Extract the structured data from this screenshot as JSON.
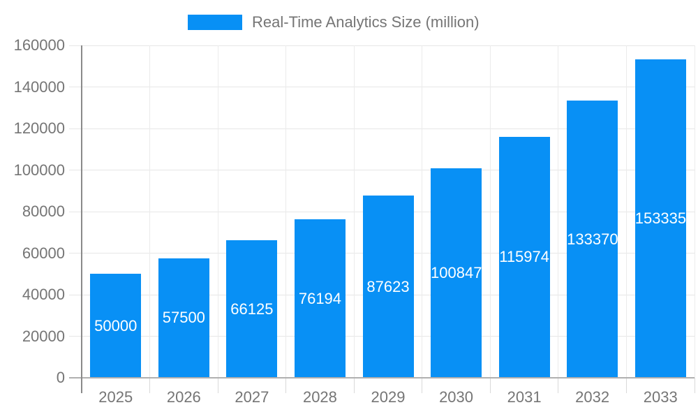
{
  "chart_data": {
    "type": "bar",
    "title": "Real-Time Analytics Size (million)",
    "categories": [
      "2025",
      "2026",
      "2027",
      "2028",
      "2029",
      "2030",
      "2031",
      "2032",
      "2033"
    ],
    "values": [
      50000,
      57500,
      66125,
      76194,
      87623,
      100847,
      115974,
      133370,
      153335
    ],
    "bar_value_labels": [
      "50000",
      "57500",
      "66125",
      "76194",
      "87623",
      "100847",
      "115974",
      "133370",
      "153335"
    ],
    "xlabel": "",
    "ylabel": "",
    "ylim": [
      0,
      160000
    ],
    "ytick_step": 20000,
    "ytick_labels": [
      "0",
      "20000",
      "40000",
      "60000",
      "80000",
      "100000",
      "120000",
      "140000",
      "160000"
    ],
    "grid": "horizontal and vertical light-gray gridlines",
    "legend_position": "top-center",
    "value_labels_position": "inside-center-white",
    "colors": {
      "bar": "#0890f5",
      "bar_label_text": "#ffffff",
      "axis_text": "#757575",
      "h_gridline": "#e6e6e6",
      "v_gridline": "#ebebeb",
      "baseline": "#b0b0b0",
      "y_axis_line": "#8a8a8a",
      "bottom_tick": "#d9d9d9",
      "background": "#ffffff"
    }
  }
}
